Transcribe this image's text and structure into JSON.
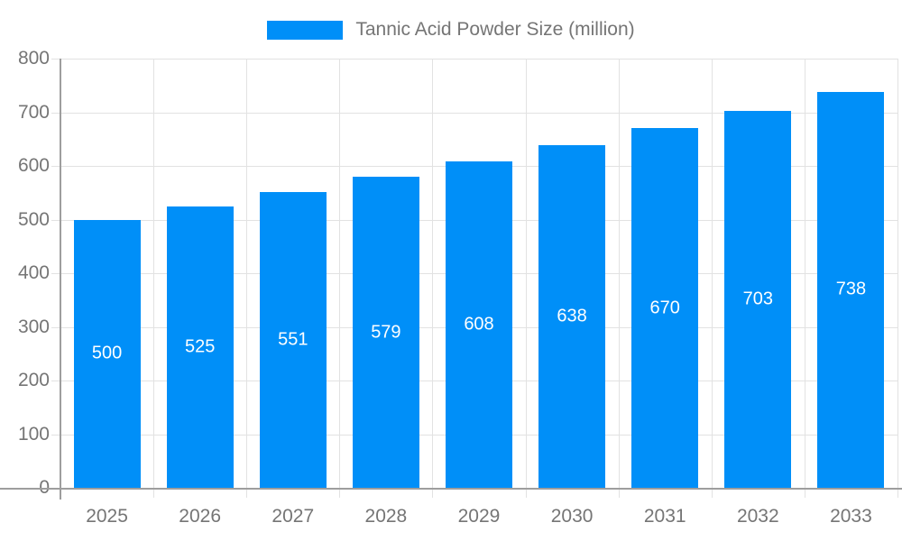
{
  "legend": {
    "label": "Tannic Acid Powder Size (million)"
  },
  "chart_data": {
    "type": "bar",
    "title": "Tannic Acid Powder Size (million)",
    "categories": [
      "2025",
      "2026",
      "2027",
      "2028",
      "2029",
      "2030",
      "2031",
      "2032",
      "2033"
    ],
    "values": [
      500,
      525,
      551,
      579,
      608,
      638,
      670,
      703,
      738
    ],
    "xlabel": "",
    "ylabel": "",
    "ylim": [
      0,
      800
    ],
    "ytick_step": 100,
    "ytick_labels": [
      "0",
      "100",
      "200",
      "300",
      "400",
      "500",
      "600",
      "700",
      "800"
    ],
    "grid": true,
    "legend_position": "top-center",
    "colors": {
      "bar": "#008ff8",
      "value_label": "#ffffff",
      "grid_line": "#e2e2e2",
      "axis_line": "#9e9e9e",
      "tick_label": "#757575",
      "legend_text": "#757575",
      "background": "#ffffff"
    }
  }
}
